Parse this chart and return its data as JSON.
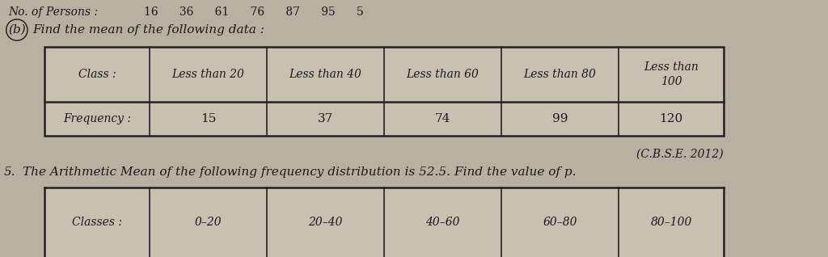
{
  "top_text": "No. of Persons :",
  "top_numbers": "16      36      61      76      87      95      5",
  "part_b_label": "(b)",
  "part_b_text": "Find the mean of the following data :",
  "table1_headers": [
    "Class :",
    "Less than 20",
    "Less than 40",
    "Less than 60",
    "Less than 80",
    "Less than\n100"
  ],
  "table1_row2_label": "Frequency :",
  "table1_row2_values": [
    "15",
    "37",
    "74",
    "99",
    "120"
  ],
  "cbse_text": "(C.B.S.E. 2012)",
  "part5_num": "5.",
  "part5_text": "The Arithmetic Mean of the following frequency distribution is 52.5. Find the value of p.",
  "table2_headers": [
    "Classes :",
    "0–20",
    "20–40",
    "40–60",
    "60–80",
    "80–100"
  ],
  "bg_color": "#b8b0a0",
  "text_color": "#1a1a1a",
  "table_line_color": "#222222"
}
